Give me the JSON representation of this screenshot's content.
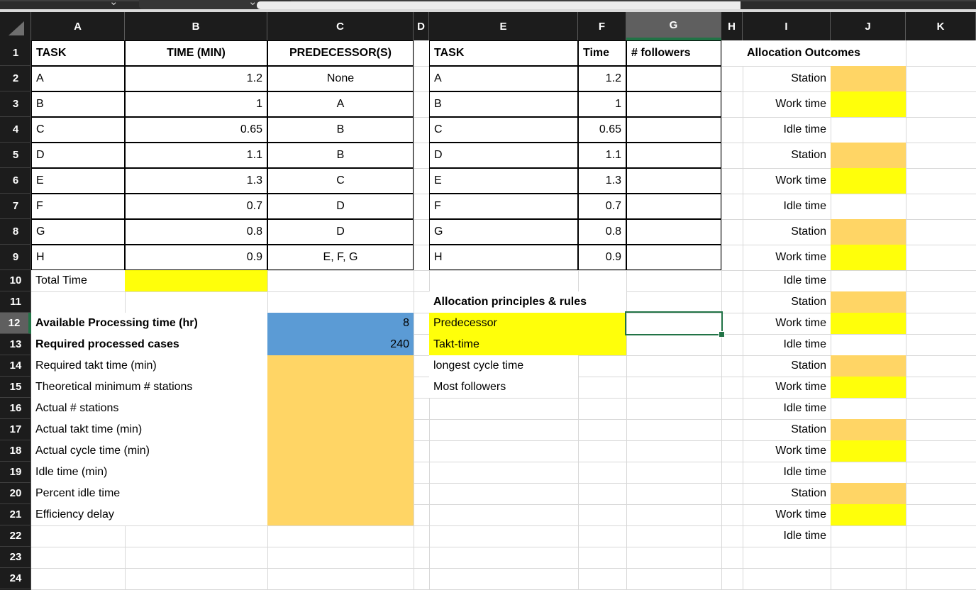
{
  "spreadsheet": {
    "column_headers": [
      "A",
      "B",
      "C",
      "D",
      "E",
      "F",
      "G",
      "H",
      "I",
      "J",
      "K"
    ],
    "row_headers": [
      "1",
      "2",
      "3",
      "4",
      "5",
      "6",
      "7",
      "8",
      "9",
      "10",
      "11",
      "12",
      "13",
      "14",
      "15",
      "16",
      "17",
      "18",
      "19",
      "20",
      "21",
      "22",
      "23",
      "24"
    ],
    "selection": {
      "cell": "G12",
      "column": "G",
      "row": "12"
    },
    "colors": {
      "yellow": "#FFFF0A",
      "orange": "#FFD565",
      "blue": "#5B9BD5",
      "selection_green": "#217346"
    },
    "cells": [
      {
        "ref": "A1",
        "col": "A",
        "row": 1,
        "text": "TASK",
        "bold": true,
        "align": "l",
        "box": true
      },
      {
        "ref": "B1",
        "col": "B",
        "row": 1,
        "text": "TIME (MIN)",
        "bold": true,
        "align": "c",
        "box": true
      },
      {
        "ref": "C1",
        "col": "C",
        "row": 1,
        "text": "PREDECESSOR(S)",
        "bold": true,
        "align": "c",
        "box": true
      },
      {
        "ref": "A2",
        "col": "A",
        "row": 2,
        "text": "A",
        "align": "l",
        "box": true
      },
      {
        "ref": "B2",
        "col": "B",
        "row": 2,
        "text": "1.2",
        "align": "r",
        "box": true
      },
      {
        "ref": "C2",
        "col": "C",
        "row": 2,
        "text": "None",
        "align": "c",
        "box": true
      },
      {
        "ref": "A3",
        "col": "A",
        "row": 3,
        "text": "B",
        "align": "l",
        "box": true
      },
      {
        "ref": "B3",
        "col": "B",
        "row": 3,
        "text": "1",
        "align": "r",
        "box": true
      },
      {
        "ref": "C3",
        "col": "C",
        "row": 3,
        "text": "A",
        "align": "c",
        "box": true
      },
      {
        "ref": "A4",
        "col": "A",
        "row": 4,
        "text": "C",
        "align": "l",
        "box": true
      },
      {
        "ref": "B4",
        "col": "B",
        "row": 4,
        "text": "0.65",
        "align": "r",
        "box": true
      },
      {
        "ref": "C4",
        "col": "C",
        "row": 4,
        "text": "B",
        "align": "c",
        "box": true
      },
      {
        "ref": "A5",
        "col": "A",
        "row": 5,
        "text": "D",
        "align": "l",
        "box": true
      },
      {
        "ref": "B5",
        "col": "B",
        "row": 5,
        "text": "1.1",
        "align": "r",
        "box": true
      },
      {
        "ref": "C5",
        "col": "C",
        "row": 5,
        "text": "B",
        "align": "c",
        "box": true
      },
      {
        "ref": "A6",
        "col": "A",
        "row": 6,
        "text": "E",
        "align": "l",
        "box": true
      },
      {
        "ref": "B6",
        "col": "B",
        "row": 6,
        "text": "1.3",
        "align": "r",
        "box": true
      },
      {
        "ref": "C6",
        "col": "C",
        "row": 6,
        "text": "C",
        "align": "c",
        "box": true
      },
      {
        "ref": "A7",
        "col": "A",
        "row": 7,
        "text": "F",
        "align": "l",
        "box": true
      },
      {
        "ref": "B7",
        "col": "B",
        "row": 7,
        "text": "0.7",
        "align": "r",
        "box": true
      },
      {
        "ref": "C7",
        "col": "C",
        "row": 7,
        "text": "D",
        "align": "c",
        "box": true
      },
      {
        "ref": "A8",
        "col": "A",
        "row": 8,
        "text": "G",
        "align": "l",
        "box": true
      },
      {
        "ref": "B8",
        "col": "B",
        "row": 8,
        "text": "0.8",
        "align": "r",
        "box": true
      },
      {
        "ref": "C8",
        "col": "C",
        "row": 8,
        "text": "D",
        "align": "c",
        "box": true
      },
      {
        "ref": "A9",
        "col": "A",
        "row": 9,
        "text": "H",
        "align": "l",
        "box": true
      },
      {
        "ref": "B9",
        "col": "B",
        "row": 9,
        "text": "0.9",
        "align": "r",
        "box": true
      },
      {
        "ref": "C9",
        "col": "C",
        "row": 9,
        "text": "E, F, G",
        "align": "c",
        "box": true
      },
      {
        "ref": "A10",
        "col": "A",
        "row": 10,
        "text": "Total Time",
        "align": "l",
        "bg": "w"
      },
      {
        "ref": "B10",
        "col": "B",
        "row": 10,
        "fill": "yellow"
      },
      {
        "ref": "A12",
        "col": "A",
        "row": 12,
        "text": "Available Processing time (hr)",
        "bold": true,
        "align": "l",
        "span": 2,
        "bg": "w"
      },
      {
        "ref": "A13",
        "col": "A",
        "row": 13,
        "text": "Required processed cases",
        "bold": true,
        "align": "l",
        "span": 2,
        "bg": "w"
      },
      {
        "ref": "A14",
        "col": "A",
        "row": 14,
        "text": "Required takt time (min)",
        "align": "l",
        "span": 2,
        "bg": "w"
      },
      {
        "ref": "A15",
        "col": "A",
        "row": 15,
        "text": "Theoretical minimum # stations",
        "align": "l",
        "span": 2,
        "bg": "w"
      },
      {
        "ref": "A16",
        "col": "A",
        "row": 16,
        "text": "Actual # stations",
        "align": "l",
        "span": 2,
        "bg": "w"
      },
      {
        "ref": "A17",
        "col": "A",
        "row": 17,
        "text": "Actual takt time (min)",
        "align": "l",
        "span": 2,
        "bg": "w"
      },
      {
        "ref": "A18",
        "col": "A",
        "row": 18,
        "text": "Actual cycle time (min)",
        "align": "l",
        "span": 2,
        "bg": "w"
      },
      {
        "ref": "A19",
        "col": "A",
        "row": 19,
        "text": "Idle time (min)",
        "align": "l",
        "span": 2,
        "bg": "w"
      },
      {
        "ref": "A20",
        "col": "A",
        "row": 20,
        "text": "Percent idle time",
        "align": "l",
        "span": 2,
        "bg": "w"
      },
      {
        "ref": "A21",
        "col": "A",
        "row": 21,
        "text": "Efficiency delay",
        "align": "l",
        "span": 2,
        "bg": "w"
      },
      {
        "ref": "C12",
        "col": "C",
        "row": 12,
        "text": "8",
        "align": "r",
        "fill": "blue"
      },
      {
        "ref": "C13",
        "col": "C",
        "row": 13,
        "text": "240",
        "align": "r",
        "fill": "blue"
      },
      {
        "ref": "C14",
        "col": "C",
        "row": 14,
        "fill": "orange"
      },
      {
        "ref": "C15",
        "col": "C",
        "row": 15,
        "fill": "orange"
      },
      {
        "ref": "C16",
        "col": "C",
        "row": 16,
        "fill": "orange"
      },
      {
        "ref": "C17",
        "col": "C",
        "row": 17,
        "fill": "orange"
      },
      {
        "ref": "C18",
        "col": "C",
        "row": 18,
        "fill": "orange"
      },
      {
        "ref": "C19",
        "col": "C",
        "row": 19,
        "fill": "orange"
      },
      {
        "ref": "C20",
        "col": "C",
        "row": 20,
        "fill": "orange"
      },
      {
        "ref": "C21",
        "col": "C",
        "row": 21,
        "fill": "orange"
      },
      {
        "ref": "E1",
        "col": "E",
        "row": 1,
        "text": "TASK",
        "bold": true,
        "align": "l",
        "box": true
      },
      {
        "ref": "F1",
        "col": "F",
        "row": 1,
        "text": "Time",
        "bold": true,
        "align": "l",
        "box": true
      },
      {
        "ref": "G1",
        "col": "G",
        "row": 1,
        "text": "# followers",
        "bold": true,
        "align": "l",
        "box": true
      },
      {
        "ref": "E2",
        "col": "E",
        "row": 2,
        "text": "A",
        "align": "l",
        "box": true
      },
      {
        "ref": "F2",
        "col": "F",
        "row": 2,
        "text": "1.2",
        "align": "r",
        "box": true
      },
      {
        "ref": "G2",
        "col": "G",
        "row": 2,
        "box": true
      },
      {
        "ref": "E3",
        "col": "E",
        "row": 3,
        "text": "B",
        "align": "l",
        "box": true
      },
      {
        "ref": "F3",
        "col": "F",
        "row": 3,
        "text": "1",
        "align": "r",
        "box": true
      },
      {
        "ref": "G3",
        "col": "G",
        "row": 3,
        "box": true
      },
      {
        "ref": "E4",
        "col": "E",
        "row": 4,
        "text": "C",
        "align": "l",
        "box": true
      },
      {
        "ref": "F4",
        "col": "F",
        "row": 4,
        "text": "0.65",
        "align": "r",
        "box": true
      },
      {
        "ref": "G4",
        "col": "G",
        "row": 4,
        "box": true
      },
      {
        "ref": "E5",
        "col": "E",
        "row": 5,
        "text": "D",
        "align": "l",
        "box": true
      },
      {
        "ref": "F5",
        "col": "F",
        "row": 5,
        "text": "1.1",
        "align": "r",
        "box": true
      },
      {
        "ref": "G5",
        "col": "G",
        "row": 5,
        "box": true
      },
      {
        "ref": "E6",
        "col": "E",
        "row": 6,
        "text": "E",
        "align": "l",
        "box": true
      },
      {
        "ref": "F6",
        "col": "F",
        "row": 6,
        "text": "1.3",
        "align": "r",
        "box": true
      },
      {
        "ref": "G6",
        "col": "G",
        "row": 6,
        "box": true
      },
      {
        "ref": "E7",
        "col": "E",
        "row": 7,
        "text": "F",
        "align": "l",
        "box": true
      },
      {
        "ref": "F7",
        "col": "F",
        "row": 7,
        "text": "0.7",
        "align": "r",
        "box": true
      },
      {
        "ref": "G7",
        "col": "G",
        "row": 7,
        "box": true
      },
      {
        "ref": "E8",
        "col": "E",
        "row": 8,
        "text": "G",
        "align": "l",
        "box": true
      },
      {
        "ref": "F8",
        "col": "F",
        "row": 8,
        "text": "0.8",
        "align": "r",
        "box": true
      },
      {
        "ref": "G8",
        "col": "G",
        "row": 8,
        "box": true
      },
      {
        "ref": "E9",
        "col": "E",
        "row": 9,
        "text": "H",
        "align": "l",
        "box": true
      },
      {
        "ref": "F9",
        "col": "F",
        "row": 9,
        "text": "0.9",
        "align": "r",
        "box": true
      },
      {
        "ref": "G9",
        "col": "G",
        "row": 9,
        "box": true
      },
      {
        "ref": "E11",
        "col": "E",
        "row": 11,
        "text": "Allocation principles & rules",
        "bold": true,
        "align": "l",
        "span": 2,
        "bg": "w"
      },
      {
        "ref": "E12",
        "col": "E",
        "row": 12,
        "text": "Predecessor",
        "align": "l",
        "span": 2,
        "fill": "yellow"
      },
      {
        "ref": "E13",
        "col": "E",
        "row": 13,
        "text": "Takt-time",
        "align": "l",
        "span": 2,
        "fill": "yellow"
      },
      {
        "ref": "E14",
        "col": "E",
        "row": 14,
        "text": "longest cycle time",
        "align": "l",
        "bg": "w"
      },
      {
        "ref": "E15",
        "col": "E",
        "row": 15,
        "text": "Most followers",
        "align": "l",
        "bg": "w"
      },
      {
        "ref": "I1",
        "col": "I",
        "row": 1,
        "text": "Allocation Outcomes",
        "bold": true,
        "align": "l",
        "span": 2,
        "bg": "w"
      },
      {
        "ref": "I2",
        "col": "I",
        "row": 2,
        "text": "Station",
        "align": "r"
      },
      {
        "ref": "J2",
        "col": "J",
        "row": 2,
        "fill": "orange"
      },
      {
        "ref": "I3",
        "col": "I",
        "row": 3,
        "text": "Work time",
        "align": "r"
      },
      {
        "ref": "J3",
        "col": "J",
        "row": 3,
        "fill": "yellow"
      },
      {
        "ref": "I4",
        "col": "I",
        "row": 4,
        "text": "Idle time",
        "align": "r"
      },
      {
        "ref": "I5",
        "col": "I",
        "row": 5,
        "text": "Station",
        "align": "r"
      },
      {
        "ref": "J5",
        "col": "J",
        "row": 5,
        "fill": "orange"
      },
      {
        "ref": "I6",
        "col": "I",
        "row": 6,
        "text": "Work time",
        "align": "r"
      },
      {
        "ref": "J6",
        "col": "J",
        "row": 6,
        "fill": "yellow"
      },
      {
        "ref": "I7",
        "col": "I",
        "row": 7,
        "text": "Idle time",
        "align": "r"
      },
      {
        "ref": "I8",
        "col": "I",
        "row": 8,
        "text": "Station",
        "align": "r"
      },
      {
        "ref": "J8",
        "col": "J",
        "row": 8,
        "fill": "orange"
      },
      {
        "ref": "I9",
        "col": "I",
        "row": 9,
        "text": "Work time",
        "align": "r"
      },
      {
        "ref": "J9",
        "col": "J",
        "row": 9,
        "fill": "yellow"
      },
      {
        "ref": "I10",
        "col": "I",
        "row": 10,
        "text": "Idle time",
        "align": "r"
      },
      {
        "ref": "I11",
        "col": "I",
        "row": 11,
        "text": "Station",
        "align": "r"
      },
      {
        "ref": "J11",
        "col": "J",
        "row": 11,
        "fill": "orange"
      },
      {
        "ref": "I12",
        "col": "I",
        "row": 12,
        "text": "Work time",
        "align": "r"
      },
      {
        "ref": "J12",
        "col": "J",
        "row": 12,
        "fill": "yellow"
      },
      {
        "ref": "I13",
        "col": "I",
        "row": 13,
        "text": "Idle time",
        "align": "r"
      },
      {
        "ref": "I14",
        "col": "I",
        "row": 14,
        "text": "Station",
        "align": "r"
      },
      {
        "ref": "J14",
        "col": "J",
        "row": 14,
        "fill": "orange"
      },
      {
        "ref": "I15",
        "col": "I",
        "row": 15,
        "text": "Work time",
        "align": "r"
      },
      {
        "ref": "J15",
        "col": "J",
        "row": 15,
        "fill": "yellow"
      },
      {
        "ref": "I16",
        "col": "I",
        "row": 16,
        "text": "Idle time",
        "align": "r"
      },
      {
        "ref": "I17",
        "col": "I",
        "row": 17,
        "text": "Station",
        "align": "r"
      },
      {
        "ref": "J17",
        "col": "J",
        "row": 17,
        "fill": "orange"
      },
      {
        "ref": "I18",
        "col": "I",
        "row": 18,
        "text": "Work time",
        "align": "r"
      },
      {
        "ref": "J18",
        "col": "J",
        "row": 18,
        "fill": "yellow"
      },
      {
        "ref": "I19",
        "col": "I",
        "row": 19,
        "text": "Idle time",
        "align": "r"
      },
      {
        "ref": "I20",
        "col": "I",
        "row": 20,
        "text": "Station",
        "align": "r"
      },
      {
        "ref": "J20",
        "col": "J",
        "row": 20,
        "fill": "orange"
      },
      {
        "ref": "I21",
        "col": "I",
        "row": 21,
        "text": "Work time",
        "align": "r"
      },
      {
        "ref": "J21",
        "col": "J",
        "row": 21,
        "fill": "yellow"
      },
      {
        "ref": "I22",
        "col": "I",
        "row": 22,
        "text": "Idle time",
        "align": "r"
      }
    ]
  }
}
